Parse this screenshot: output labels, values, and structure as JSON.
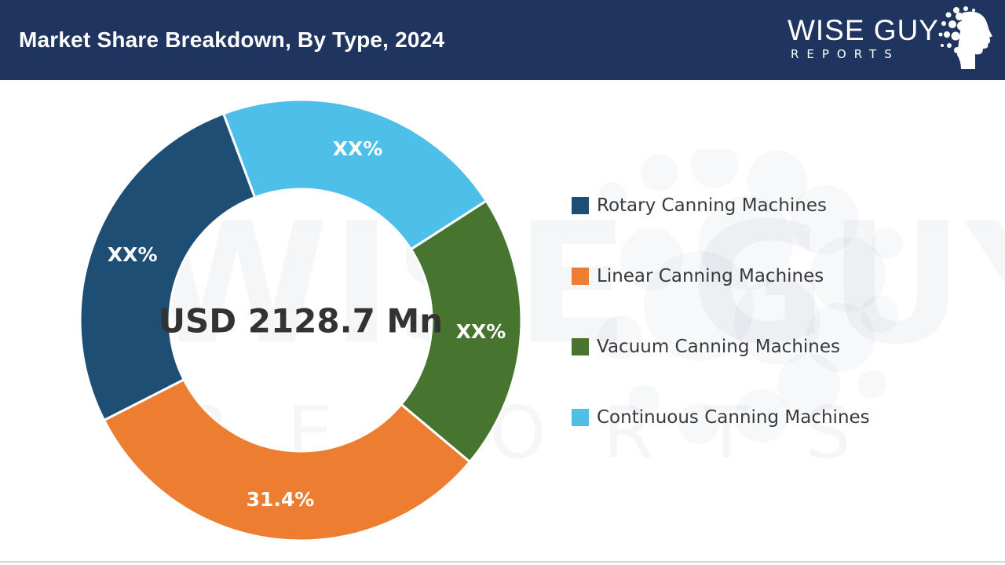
{
  "header": {
    "title": "Market Share Breakdown, By Type, 2024",
    "logo": {
      "line1": "WISE GUY",
      "line2": "REPORTS"
    }
  },
  "watermark": {
    "line1": "WISE GUY",
    "line2": "REPORTS"
  },
  "chart_data": {
    "type": "pie",
    "subtype": "donut",
    "title": "Market Share Breakdown, By Type, 2024",
    "center_label": "USD 2128.7 Mn",
    "start_angle_deg": -20.5,
    "direction": "clockwise",
    "slices": [
      {
        "label": "Continuous Canning Machines",
        "pct": 21.6,
        "display": "XX%",
        "color": "#4dbfe8"
      },
      {
        "label": "Vacuum Canning Machines",
        "pct": 20.2,
        "display": "XX%",
        "color": "#47742e"
      },
      {
        "label": "Linear Canning Machines",
        "pct": 31.4,
        "display": "31.4%",
        "color": "#ed7d31"
      },
      {
        "label": "Rotary Canning Machines",
        "pct": 26.8,
        "display": "XX%",
        "color": "#1f4e74"
      }
    ],
    "legend": [
      {
        "label": "Rotary Canning Machines",
        "color": "#1f4e74"
      },
      {
        "label": "Linear Canning Machines",
        "color": "#ed7d31"
      },
      {
        "label": "Vacuum Canning Machines",
        "color": "#47742e"
      },
      {
        "label": "Continuous Canning Machines",
        "color": "#4dbfe8"
      }
    ],
    "legend_position": "right"
  }
}
